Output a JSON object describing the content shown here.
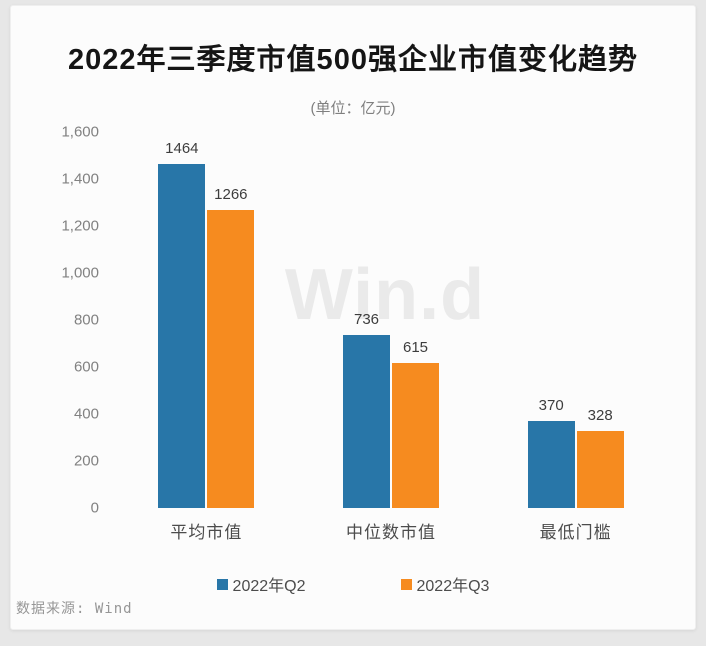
{
  "header": {
    "title": "2022年三季度市值500强企业市值变化趋势",
    "subtitle": "(单位：亿元)"
  },
  "watermark": "Win.d",
  "footer": {
    "source_label": "数据来源: Wind"
  },
  "colors": {
    "q2_blue": "#2876a8",
    "q3_orange": "#f68b1f",
    "card_background": "#fcfcfc",
    "page_background": "#e7e7e7",
    "watermark_gray": "#eaeaea"
  },
  "chart_data": {
    "type": "bar",
    "title": "2022年三季度市值500强企业市值变化趋势",
    "subtitle": "(单位：亿元)",
    "categories": [
      "平均市值",
      "中位数市值",
      "最低门槛"
    ],
    "series": [
      {
        "name": "2022年Q2",
        "color": "#2876a8",
        "values": [
          1464,
          736,
          370
        ]
      },
      {
        "name": "2022年Q3",
        "color": "#f68b1f",
        "values": [
          1266,
          615,
          328
        ]
      }
    ],
    "ylim": [
      0,
      1600
    ],
    "ytick_step": 200,
    "ytick_labels": [
      "0",
      "200",
      "400",
      "600",
      "800",
      "1,000",
      "1,200",
      "1,400",
      "1,600"
    ],
    "grid": false,
    "axis_line": false,
    "value_labels": true,
    "legend_position": "bottom",
    "source": "Wind"
  }
}
